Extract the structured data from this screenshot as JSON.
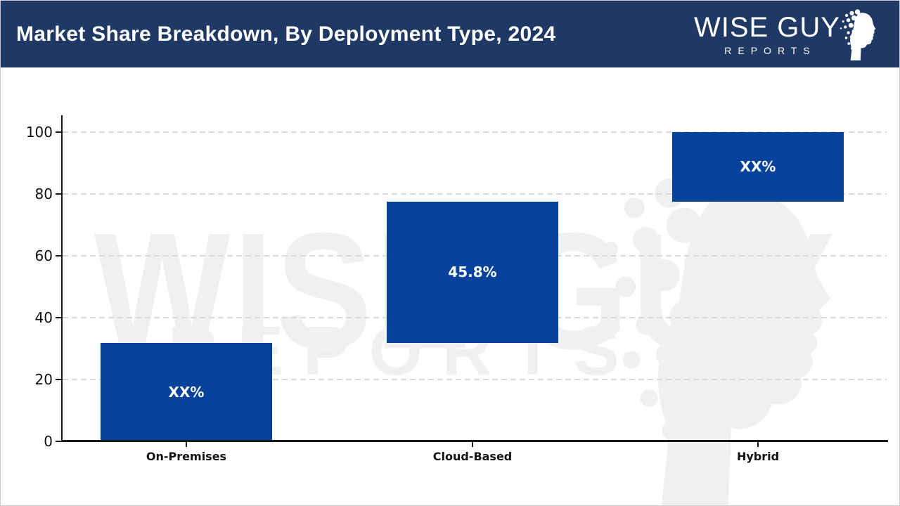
{
  "header": {
    "title": "Market Share Breakdown, By Deployment Type, 2024",
    "logo_line1": "WISE GUY",
    "logo_line2": "REPORTS"
  },
  "watermark": {
    "line1": "WISE GUY",
    "line2": "REPORTS"
  },
  "chart_data": {
    "type": "bar",
    "variant": "floating-segment-waterfall",
    "title": "Market Share Breakdown, By Deployment Type, 2024",
    "categories": [
      "On-Premises",
      "Cloud-Based",
      "Hybrid"
    ],
    "segments": [
      {
        "category": "On-Premises",
        "start": 0,
        "end": 31.8,
        "label": "XX%"
      },
      {
        "category": "Cloud-Based",
        "start": 31.8,
        "end": 77.6,
        "label": "45.8%"
      },
      {
        "category": "Hybrid",
        "start": 77.6,
        "end": 100,
        "label": "XX%"
      }
    ],
    "xlabel": "",
    "ylabel": "",
    "ylim": [
      0,
      100
    ],
    "yticks": [
      0,
      20,
      40,
      60,
      80,
      100
    ],
    "grid": "horizontal-dashed",
    "legend": "none",
    "colors": {
      "bar": "#04429c",
      "bar_label": "#ffffff",
      "header_bg": "#1f3864",
      "axis": "#1a1a1a",
      "gridline": "#dadada",
      "tick_label": "#111111",
      "watermark": "#eff0f2"
    }
  }
}
